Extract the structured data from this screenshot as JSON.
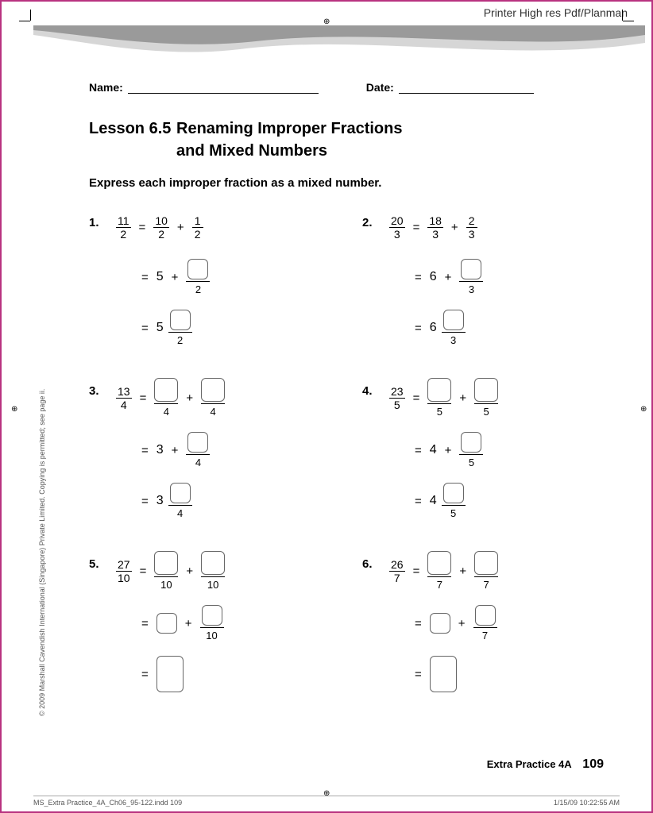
{
  "header_label": "Printer High res Pdf/Planman",
  "name_label": "Name:",
  "date_label": "Date:",
  "lesson_number": "Lesson 6.5",
  "lesson_title_l1": "Renaming Improper Fractions",
  "lesson_title_l2": "and Mixed Numbers",
  "instruction": "Express each improper fraction as a mixed number.",
  "problems": [
    {
      "num": "1.",
      "line1": {
        "fracA": {
          "n": "11",
          "d": "2"
        },
        "fracB": {
          "n": "10",
          "d": "2"
        },
        "fracC": {
          "n": "1",
          "d": "2"
        }
      },
      "line2": {
        "whole": "5",
        "box_over_d": "2"
      },
      "line3": {
        "whole": "5",
        "box_over_d": "2"
      }
    },
    {
      "num": "2.",
      "line1": {
        "fracA": {
          "n": "20",
          "d": "3"
        },
        "fracB": {
          "n": "18",
          "d": "3"
        },
        "fracC": {
          "n": "2",
          "d": "3"
        }
      },
      "line2": {
        "whole": "6",
        "box_over_d": "3"
      },
      "line3": {
        "whole": "6",
        "box_over_d": "3"
      }
    },
    {
      "num": "3.",
      "line1_boxes": {
        "fracA": {
          "n": "13",
          "d": "4"
        },
        "d1": "4",
        "d2": "4"
      },
      "line2": {
        "whole": "3",
        "box_over_d": "4"
      },
      "line3": {
        "whole": "3",
        "box_over_d": "4"
      }
    },
    {
      "num": "4.",
      "line1_boxes": {
        "fracA": {
          "n": "23",
          "d": "5"
        },
        "d1": "5",
        "d2": "5"
      },
      "line2": {
        "whole": "4",
        "box_over_d": "5"
      },
      "line3": {
        "whole": "4",
        "box_over_d": "5"
      }
    },
    {
      "num": "5.",
      "line1_boxes": {
        "fracA": {
          "n": "27",
          "d": "10"
        },
        "d1": "10",
        "d2": "10"
      },
      "line2_box_plus": {
        "box_over_d": "10"
      },
      "line3_bigbox": true
    },
    {
      "num": "6.",
      "line1_boxes": {
        "fracA": {
          "n": "26",
          "d": "7"
        },
        "d1": "7",
        "d2": "7"
      },
      "line2_box_plus": {
        "box_over_d": "7"
      },
      "line3_bigbox": true
    }
  ],
  "copyright": "© 2009 Marshall Cavendish International (Singapore) Private Limited. Copying is permitted; see page ii.",
  "footer_practice": "Extra Practice 4A",
  "footer_page": "109",
  "footer_file": "MS_Extra Practice_4A_Ch06_95-122.indd   109",
  "footer_timestamp": "1/15/09   10:22:55 AM",
  "colors": {
    "border": "#b83280",
    "wave_dark": "#9a9a9a",
    "wave_light": "#d6d6d6"
  }
}
